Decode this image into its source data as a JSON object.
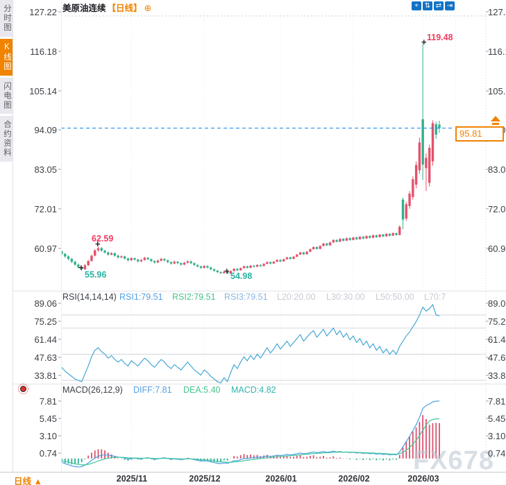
{
  "app": {
    "watermark": "FX678"
  },
  "sidebar": {
    "tabs": [
      {
        "label": "分时图",
        "active": false
      },
      {
        "label": "K线图",
        "active": true
      },
      {
        "label": "闪电图",
        "active": false
      },
      {
        "label": "合约资料",
        "active": false
      }
    ]
  },
  "header": {
    "symbol": "美原油连续",
    "period": "【日线】",
    "add_icon": "⊕"
  },
  "toolbar": {
    "icons": [
      {
        "name": "pan-crosshair",
        "glyph": "+"
      },
      {
        "name": "axis-scale",
        "glyph": "⇅"
      },
      {
        "name": "axis-zoom",
        "glyph": "⇄"
      },
      {
        "name": "exit-view",
        "glyph": "⇥"
      }
    ]
  },
  "axes": {
    "main": [
      "127.22",
      "116.18",
      "105.14",
      "94.09",
      "83.05",
      "72.01",
      "60.97"
    ],
    "rsi": [
      "89.06",
      "75.25",
      "61.44",
      "47.63",
      "33.81"
    ],
    "macd": [
      "7.81",
      "5.45",
      "3.10",
      "0.74"
    ]
  },
  "annotations": {
    "high": "119.48",
    "swing_high": "62.59",
    "swing_low1": "55.96",
    "swing_low2": "54.98"
  },
  "last_price": "95.81",
  "rsi_header": {
    "title": "RSI(14,14,14)",
    "rsi1": "RSI1:79.51",
    "rsi2": "RSI2:79.51",
    "rsi3": "RSI3:79.51",
    "l20": "L20:20.00",
    "l30": "L30:30.00",
    "l50": "L50:50.00",
    "l70": "L70:7"
  },
  "macd_header": {
    "title": "MACD(26,12,9)",
    "diff": "DIFF:7.81",
    "dea": "DEA:5.40",
    "macd": "MACD:4.82"
  },
  "bottom": {
    "period": "日线",
    "arrow": "▲",
    "dates": [
      "2025/11",
      "2025/12",
      "2026/01",
      "2026/02",
      "2026/03"
    ]
  },
  "colors": {
    "up": "#e4526b",
    "down": "#33af8c",
    "rsi_line": "#45a7d4",
    "diff_line": "#4aa0e0",
    "dea_line": "#3fc79d",
    "hist_up": "#d9526b",
    "hist_down": "#2fae8f",
    "accent": "#f08300",
    "last_price_line": "#1f8ceb",
    "toolbar_blue": "#1273c5"
  },
  "chart_data": {
    "type": "candlestick",
    "title": "美原油连续 日线",
    "x_ticks": [
      {
        "label": "2025/11",
        "index": 21
      },
      {
        "label": "2025/12",
        "index": 43
      },
      {
        "label": "2026/01",
        "index": 66
      },
      {
        "label": "2026/02",
        "index": 88
      },
      {
        "label": "2026/03",
        "index": 109
      }
    ],
    "panels": [
      {
        "name": "price",
        "type": "candlestick",
        "ylim": [
          60.97,
          127.22
        ],
        "y_ticks": [
          127.22,
          116.18,
          105.14,
          94.09,
          83.05,
          72.01,
          60.97
        ],
        "last_price": 95.81,
        "high_marker": 119.48,
        "ohlc": [
          [
            61.3,
            61.6,
            60.2,
            60.6
          ],
          [
            60.6,
            60.9,
            59.5,
            59.9
          ],
          [
            59.9,
            60.2,
            58.8,
            59.2
          ],
          [
            59.2,
            59.5,
            58.0,
            58.4
          ],
          [
            58.4,
            58.7,
            57.2,
            57.6
          ],
          [
            57.6,
            57.9,
            56.5,
            56.9
          ],
          [
            56.9,
            57.2,
            55.96,
            56.3
          ],
          [
            56.3,
            57.8,
            56.1,
            57.4
          ],
          [
            57.4,
            58.9,
            57.2,
            58.6
          ],
          [
            58.6,
            60.4,
            58.4,
            60.1
          ],
          [
            60.1,
            61.9,
            59.9,
            61.6
          ],
          [
            61.6,
            62.59,
            61.2,
            62.2
          ],
          [
            62.2,
            62.5,
            61.2,
            61.5
          ],
          [
            61.5,
            61.8,
            60.7,
            61.0
          ],
          [
            61.0,
            61.3,
            60.1,
            60.4
          ],
          [
            60.4,
            61.1,
            60.2,
            60.8
          ],
          [
            60.8,
            61.0,
            59.8,
            60.1
          ],
          [
            60.1,
            60.4,
            59.3,
            59.6
          ],
          [
            59.6,
            60.2,
            59.4,
            59.9
          ],
          [
            59.9,
            60.1,
            59.0,
            59.3
          ],
          [
            59.3,
            59.6,
            58.5,
            58.8
          ],
          [
            58.8,
            59.7,
            58.6,
            59.4
          ],
          [
            59.4,
            59.6,
            58.7,
            59.0
          ],
          [
            59.0,
            59.2,
            58.2,
            58.5
          ],
          [
            58.5,
            59.2,
            58.3,
            58.9
          ],
          [
            58.9,
            59.8,
            58.7,
            59.5
          ],
          [
            59.5,
            59.7,
            58.8,
            59.1
          ],
          [
            59.1,
            59.3,
            58.3,
            58.6
          ],
          [
            58.6,
            58.8,
            57.9,
            58.2
          ],
          [
            58.2,
            59.0,
            58.0,
            58.7
          ],
          [
            58.7,
            59.5,
            58.5,
            59.2
          ],
          [
            59.2,
            59.4,
            58.5,
            58.8
          ],
          [
            58.8,
            59.0,
            58.0,
            58.3
          ],
          [
            58.3,
            58.5,
            57.6,
            57.9
          ],
          [
            57.9,
            58.7,
            57.7,
            58.4
          ],
          [
            58.4,
            58.6,
            57.7,
            58.0
          ],
          [
            58.0,
            58.2,
            57.3,
            57.6
          ],
          [
            57.6,
            58.4,
            57.4,
            58.1
          ],
          [
            58.1,
            58.8,
            57.9,
            58.5
          ],
          [
            58.5,
            58.7,
            57.7,
            58.0
          ],
          [
            58.0,
            58.2,
            57.2,
            57.5
          ],
          [
            57.5,
            57.7,
            56.8,
            57.1
          ],
          [
            57.1,
            57.3,
            56.4,
            56.7
          ],
          [
            56.7,
            57.5,
            56.5,
            57.2
          ],
          [
            57.2,
            57.4,
            56.5,
            56.8
          ],
          [
            56.8,
            57.0,
            56.0,
            56.3
          ],
          [
            56.3,
            56.5,
            55.6,
            55.9
          ],
          [
            55.9,
            56.1,
            55.2,
            55.5
          ],
          [
            55.5,
            55.7,
            55.0,
            55.2
          ],
          [
            55.2,
            55.9,
            55.1,
            55.6
          ],
          [
            55.6,
            55.7,
            54.98,
            55.1
          ],
          [
            55.1,
            56.0,
            55.0,
            55.8
          ],
          [
            55.8,
            56.6,
            55.7,
            56.4
          ],
          [
            56.4,
            56.6,
            55.8,
            56.0
          ],
          [
            56.0,
            56.8,
            55.9,
            56.6
          ],
          [
            56.6,
            57.3,
            56.5,
            57.1
          ],
          [
            57.1,
            57.3,
            56.5,
            56.7
          ],
          [
            56.7,
            57.5,
            56.6,
            57.3
          ],
          [
            57.3,
            57.5,
            56.8,
            57.0
          ],
          [
            57.0,
            57.7,
            56.9,
            57.5
          ],
          [
            57.5,
            57.7,
            57.0,
            57.2
          ],
          [
            57.2,
            58.0,
            57.1,
            57.8
          ],
          [
            57.8,
            58.5,
            57.7,
            58.3
          ],
          [
            58.3,
            58.5,
            57.7,
            57.9
          ],
          [
            57.9,
            58.6,
            57.8,
            58.4
          ],
          [
            58.4,
            59.1,
            58.3,
            58.9
          ],
          [
            58.9,
            59.1,
            58.3,
            58.5
          ],
          [
            58.5,
            59.3,
            58.4,
            59.1
          ],
          [
            59.1,
            59.8,
            59.0,
            59.6
          ],
          [
            59.6,
            59.8,
            59.0,
            59.2
          ],
          [
            59.2,
            60.0,
            59.1,
            59.8
          ],
          [
            59.8,
            60.6,
            59.7,
            60.4
          ],
          [
            60.4,
            61.2,
            60.3,
            61.0
          ],
          [
            61.0,
            61.2,
            60.3,
            60.5
          ],
          [
            60.5,
            61.4,
            60.4,
            61.2
          ],
          [
            61.2,
            62.1,
            61.1,
            61.9
          ],
          [
            61.9,
            62.7,
            61.8,
            62.5
          ],
          [
            62.5,
            62.7,
            61.8,
            62.0
          ],
          [
            62.0,
            63.0,
            61.9,
            62.8
          ],
          [
            62.8,
            63.7,
            62.7,
            63.5
          ],
          [
            63.5,
            63.7,
            62.8,
            63.0
          ],
          [
            63.0,
            64.0,
            62.9,
            63.8
          ],
          [
            63.8,
            64.7,
            63.7,
            64.5
          ],
          [
            64.5,
            64.7,
            63.8,
            64.0
          ],
          [
            64.0,
            65.0,
            63.9,
            64.8
          ],
          [
            64.8,
            65.0,
            64.1,
            64.3
          ],
          [
            64.3,
            65.2,
            64.2,
            65.0
          ],
          [
            65.0,
            65.2,
            64.3,
            64.5
          ],
          [
            64.5,
            65.4,
            64.4,
            65.2
          ],
          [
            65.2,
            65.4,
            64.5,
            64.7
          ],
          [
            64.7,
            65.6,
            64.6,
            65.4
          ],
          [
            65.4,
            65.6,
            64.7,
            64.9
          ],
          [
            64.9,
            65.8,
            64.8,
            65.6
          ],
          [
            65.6,
            65.8,
            64.9,
            65.1
          ],
          [
            65.1,
            66.0,
            65.0,
            65.8
          ],
          [
            65.8,
            66.0,
            65.1,
            65.3
          ],
          [
            65.3,
            66.2,
            65.2,
            66.0
          ],
          [
            66.0,
            66.2,
            65.3,
            65.5
          ],
          [
            65.5,
            66.4,
            65.4,
            66.2
          ],
          [
            66.2,
            66.4,
            65.5,
            65.7
          ],
          [
            65.7,
            66.6,
            65.6,
            66.4
          ],
          [
            66.4,
            66.6,
            65.7,
            65.9
          ],
          [
            65.9,
            68.6,
            65.8,
            68.2
          ],
          [
            75.8,
            76.3,
            67.5,
            70.2
          ],
          [
            70.5,
            75.2,
            69.8,
            74.5
          ],
          [
            74.0,
            78.2,
            73.2,
            77.5
          ],
          [
            76.5,
            82.3,
            75.8,
            81.5
          ],
          [
            80.0,
            86.5,
            79.0,
            85.5
          ],
          [
            84.0,
            93.2,
            83.0,
            91.8
          ],
          [
            98.3,
            119.48,
            81.3,
            85.6
          ],
          [
            84.6,
            88.8,
            78.2,
            87.5
          ],
          [
            80.5,
            91.2,
            79.5,
            90.3
          ],
          [
            86.5,
            98.0,
            85.3,
            97.2
          ],
          [
            96.9,
            97.6,
            92.8,
            94.0
          ],
          [
            96.8,
            97.9,
            94.5,
            95.81
          ]
        ]
      },
      {
        "name": "rsi",
        "type": "line",
        "ylim": [
          33.81,
          89.06
        ],
        "y_ticks": [
          89.06,
          75.25,
          61.44,
          47.63,
          33.81
        ],
        "levels": [
          80,
          70,
          50,
          30
        ],
        "values": [
          40,
          37,
          35,
          33,
          31,
          30,
          29,
          35,
          41,
          48,
          53,
          55,
          52,
          50,
          47,
          49,
          46,
          44,
          46,
          43,
          41,
          45,
          43,
          41,
          44,
          47,
          45,
          42,
          40,
          43,
          46,
          44,
          41,
          39,
          42,
          40,
          38,
          41,
          44,
          41,
          38,
          36,
          34,
          38,
          36,
          33,
          31,
          29,
          28,
          32,
          29,
          36,
          42,
          39,
          44,
          48,
          45,
          49,
          46,
          50,
          47,
          51,
          55,
          51,
          54,
          58,
          54,
          57,
          60,
          56,
          59,
          62,
          65,
          60,
          63,
          66,
          68,
          63,
          66,
          69,
          64,
          67,
          70,
          65,
          68,
          63,
          66,
          61,
          64,
          59,
          62,
          57,
          60,
          55,
          58,
          53,
          56,
          51,
          54,
          50,
          53,
          50,
          56,
          60,
          64,
          67,
          71,
          75,
          80,
          86,
          83,
          85,
          88,
          80,
          79.5
        ]
      },
      {
        "name": "macd",
        "type": "macd",
        "ylim": [
          0.74,
          7.81
        ],
        "y_ticks": [
          7.81,
          5.45,
          3.1,
          0.74
        ],
        "diff": [
          -0.5,
          -0.7,
          -0.85,
          -1.0,
          -1.1,
          -1.15,
          -1.1,
          -0.9,
          -0.6,
          -0.25,
          0.05,
          0.3,
          0.45,
          0.5,
          0.45,
          0.4,
          0.3,
          0.2,
          0.15,
          0.05,
          -0.05,
          0.0,
          0.05,
          0.0,
          -0.05,
          0.05,
          0.1,
          0.0,
          -0.1,
          -0.05,
          0.05,
          0.1,
          0.0,
          -0.1,
          -0.05,
          -0.1,
          -0.15,
          -0.1,
          0.0,
          -0.05,
          -0.15,
          -0.25,
          -0.35,
          -0.3,
          -0.35,
          -0.45,
          -0.55,
          -0.65,
          -0.7,
          -0.6,
          -0.65,
          -0.5,
          -0.3,
          -0.3,
          -0.15,
          0.0,
          0.0,
          0.1,
          0.1,
          0.2,
          0.15,
          0.25,
          0.35,
          0.3,
          0.35,
          0.45,
          0.4,
          0.45,
          0.55,
          0.5,
          0.55,
          0.65,
          0.75,
          0.65,
          0.7,
          0.8,
          0.9,
          0.8,
          0.85,
          0.95,
          0.85,
          0.9,
          1.0,
          0.9,
          0.95,
          0.85,
          0.9,
          0.8,
          0.85,
          0.75,
          0.8,
          0.7,
          0.75,
          0.65,
          0.7,
          0.6,
          0.65,
          0.55,
          0.6,
          0.5,
          0.55,
          0.5,
          0.9,
          1.6,
          2.3,
          3.0,
          3.8,
          4.6,
          5.6,
          6.8,
          7.2,
          7.4,
          7.7,
          7.8,
          7.81
        ],
        "dea": [
          -0.3,
          -0.4,
          -0.5,
          -0.6,
          -0.7,
          -0.8,
          -0.85,
          -0.85,
          -0.8,
          -0.65,
          -0.5,
          -0.33,
          -0.18,
          -0.05,
          0.05,
          0.12,
          0.16,
          0.17,
          0.17,
          0.14,
          0.1,
          0.08,
          0.07,
          0.06,
          0.04,
          0.04,
          0.05,
          0.04,
          0.01,
          0.0,
          0.01,
          0.03,
          0.02,
          0.0,
          -0.01,
          -0.03,
          -0.05,
          -0.06,
          -0.05,
          -0.05,
          -0.07,
          -0.11,
          -0.16,
          -0.19,
          -0.22,
          -0.26,
          -0.32,
          -0.39,
          -0.45,
          -0.48,
          -0.51,
          -0.51,
          -0.47,
          -0.43,
          -0.38,
          -0.3,
          -0.24,
          -0.17,
          -0.12,
          -0.05,
          -0.01,
          0.04,
          0.1,
          0.14,
          0.18,
          0.24,
          0.27,
          0.31,
          0.35,
          0.38,
          0.42,
          0.46,
          0.52,
          0.55,
          0.58,
          0.62,
          0.68,
          0.7,
          0.73,
          0.77,
          0.79,
          0.81,
          0.85,
          0.86,
          0.88,
          0.87,
          0.88,
          0.86,
          0.86,
          0.84,
          0.83,
          0.8,
          0.79,
          0.76,
          0.75,
          0.72,
          0.71,
          0.68,
          0.66,
          0.63,
          0.61,
          0.59,
          0.65,
          0.84,
          1.13,
          1.5,
          1.96,
          2.49,
          3.11,
          3.85,
          4.52,
          5.1,
          5.3,
          5.38,
          5.4
        ]
      }
    ]
  }
}
